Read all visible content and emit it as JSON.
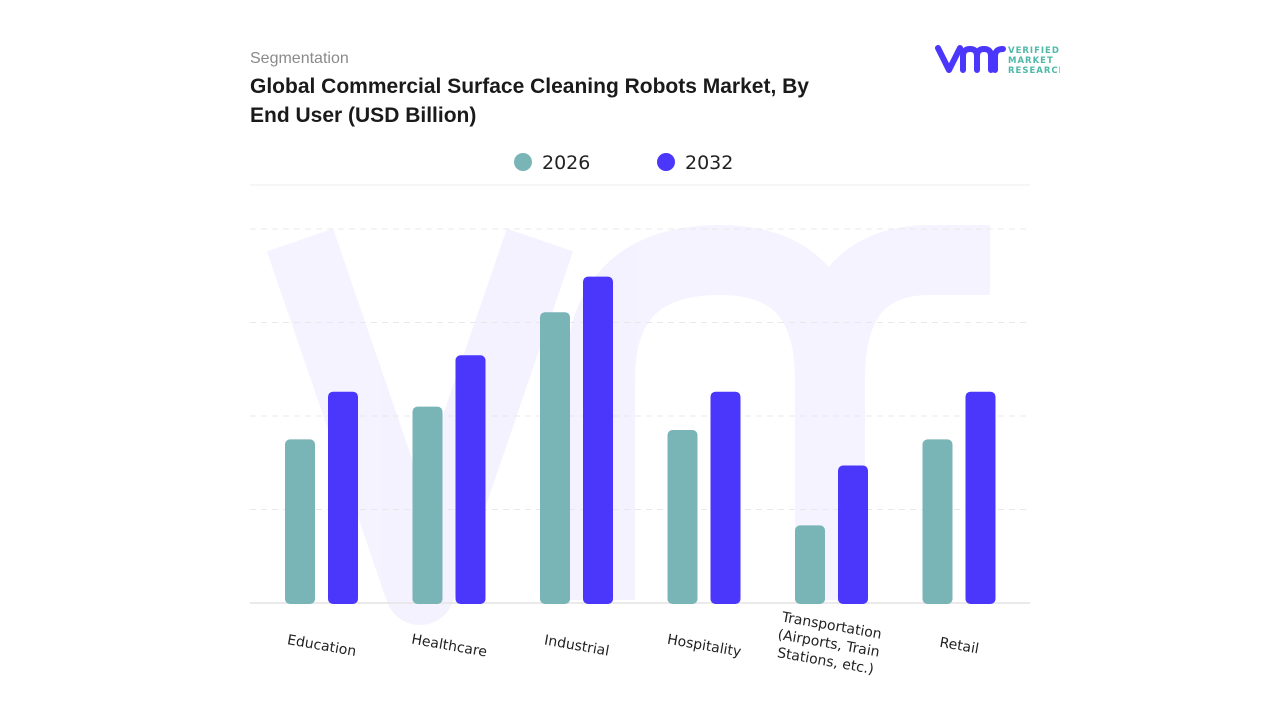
{
  "header": {
    "section": "Segmentation",
    "title": "Global Commercial Surface Cleaning Robots Market, By End User (USD Billion)"
  },
  "logo": {
    "mark": "vmr",
    "text": [
      "VERIFIED",
      "MARKET",
      "RESEARCH"
    ]
  },
  "chart_data": {
    "type": "bar",
    "title": "Global Commercial Surface Cleaning Robots Market, By End User (USD Billion)",
    "categories": [
      "Education",
      "Healthcare",
      "Industrial",
      "Hospitality",
      "Transportation (Airports, Train Stations, etc.)",
      "Retail"
    ],
    "category_lines": [
      [
        "Education"
      ],
      [
        "Healthcare"
      ],
      [
        "Industrial"
      ],
      [
        "Hospitality"
      ],
      [
        "Transportation",
        "(Airports, Train",
        "Stations, etc.)"
      ],
      [
        "Retail"
      ]
    ],
    "series": [
      {
        "name": "2026",
        "color": "#79b4b7",
        "values": [
          1.75,
          2.1,
          3.11,
          1.85,
          0.83,
          1.75
        ]
      },
      {
        "name": "2032",
        "color": "#4b36fb",
        "values": [
          2.26,
          2.65,
          3.49,
          2.26,
          1.47,
          2.26
        ]
      }
    ],
    "ylim": [
      0,
      4
    ],
    "y_ticks_labeled": false,
    "grid": true,
    "legend": "top-center",
    "xlabel": "",
    "ylabel": ""
  }
}
